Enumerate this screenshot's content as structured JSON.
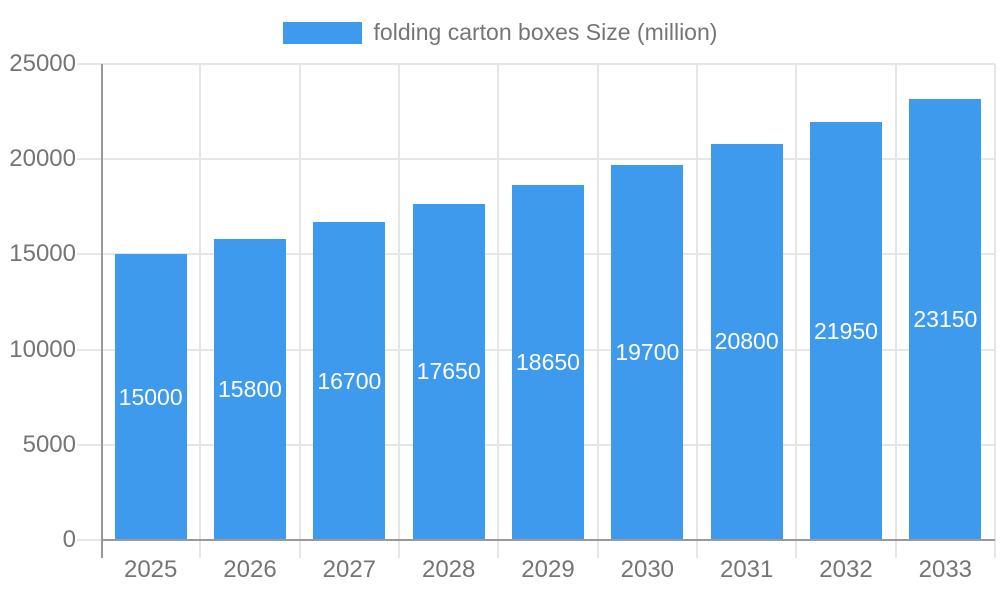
{
  "chart_data": {
    "type": "bar",
    "title": "",
    "series_name": "folding carton boxes Size (million)",
    "categories": [
      "2025",
      "2026",
      "2027",
      "2028",
      "2029",
      "2030",
      "2031",
      "2032",
      "2033"
    ],
    "values": [
      15000,
      15800,
      16700,
      17650,
      18650,
      19700,
      20800,
      21950,
      23150
    ],
    "xlabel": "",
    "ylabel": "",
    "ylim": [
      0,
      25000
    ],
    "yticks": [
      0,
      5000,
      10000,
      15000,
      20000,
      25000
    ],
    "grid": true,
    "legend_position": "top",
    "value_labels_position": "inside-center",
    "colors": {
      "bar": "#3e9aec",
      "grid": "#e6e6e6",
      "axis": "#999999",
      "axis_text": "#757575",
      "value_text": "#ffffff"
    }
  }
}
